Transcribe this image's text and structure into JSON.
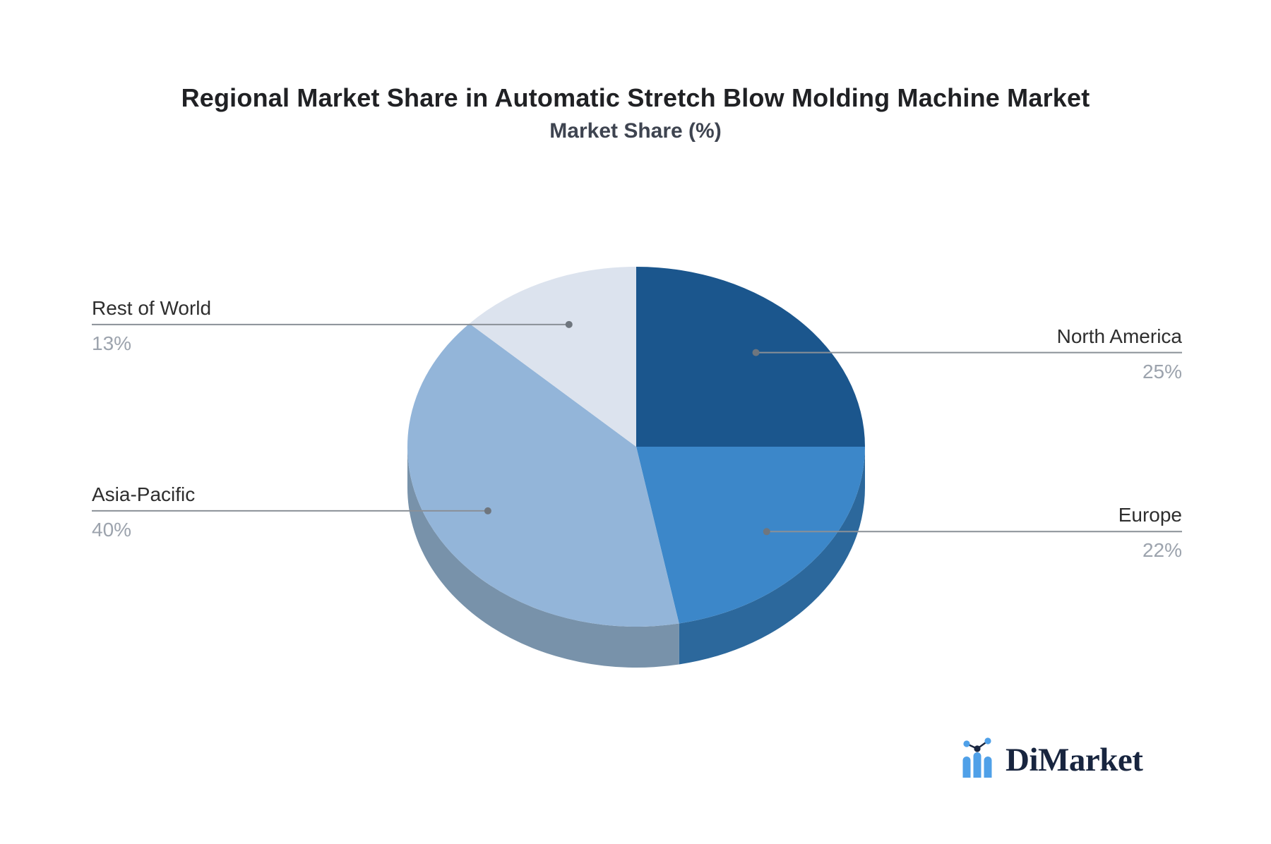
{
  "title": "Regional Market Share in Automatic Stretch Blow Molding Machine Market",
  "subtitle": "Market Share (%)",
  "logo": {
    "text": "DiMarket",
    "icon": "bar-chart-logo-icon"
  },
  "colors": {
    "leader_line": "#8A9097",
    "leader_dot": "#6F767E",
    "label_text": "#2E2E2E",
    "percent_text": "#9CA3AD",
    "logo_navy": "#18253F",
    "logo_blue": "#4FA0E8"
  },
  "chart_data": {
    "type": "pie",
    "title": "Regional Market Share in Automatic Stretch Blow Molding Machine Market",
    "subtitle": "Market Share (%)",
    "unit": "%",
    "effect_3d": true,
    "start_angle": "12-o-clock",
    "direction": "clockwise",
    "legend_position": "callouts",
    "slices": [
      {
        "label": "North America",
        "value": 25,
        "pct_label": "25%",
        "color": "#1B568D",
        "depth_color": "#133F68",
        "side": "right"
      },
      {
        "label": "Europe",
        "value": 22,
        "pct_label": "22%",
        "color": "#3C87C9",
        "depth_color": "#2C689C",
        "side": "right"
      },
      {
        "label": "Asia-Pacific",
        "value": 40,
        "pct_label": "40%",
        "color": "#93B5D9",
        "depth_color": "#7892AA",
        "side": "left"
      },
      {
        "label": "Rest of World",
        "value": 13,
        "pct_label": "13%",
        "color": "#DCE3EE",
        "depth_color": "#ADB9CA",
        "side": "left"
      }
    ]
  }
}
